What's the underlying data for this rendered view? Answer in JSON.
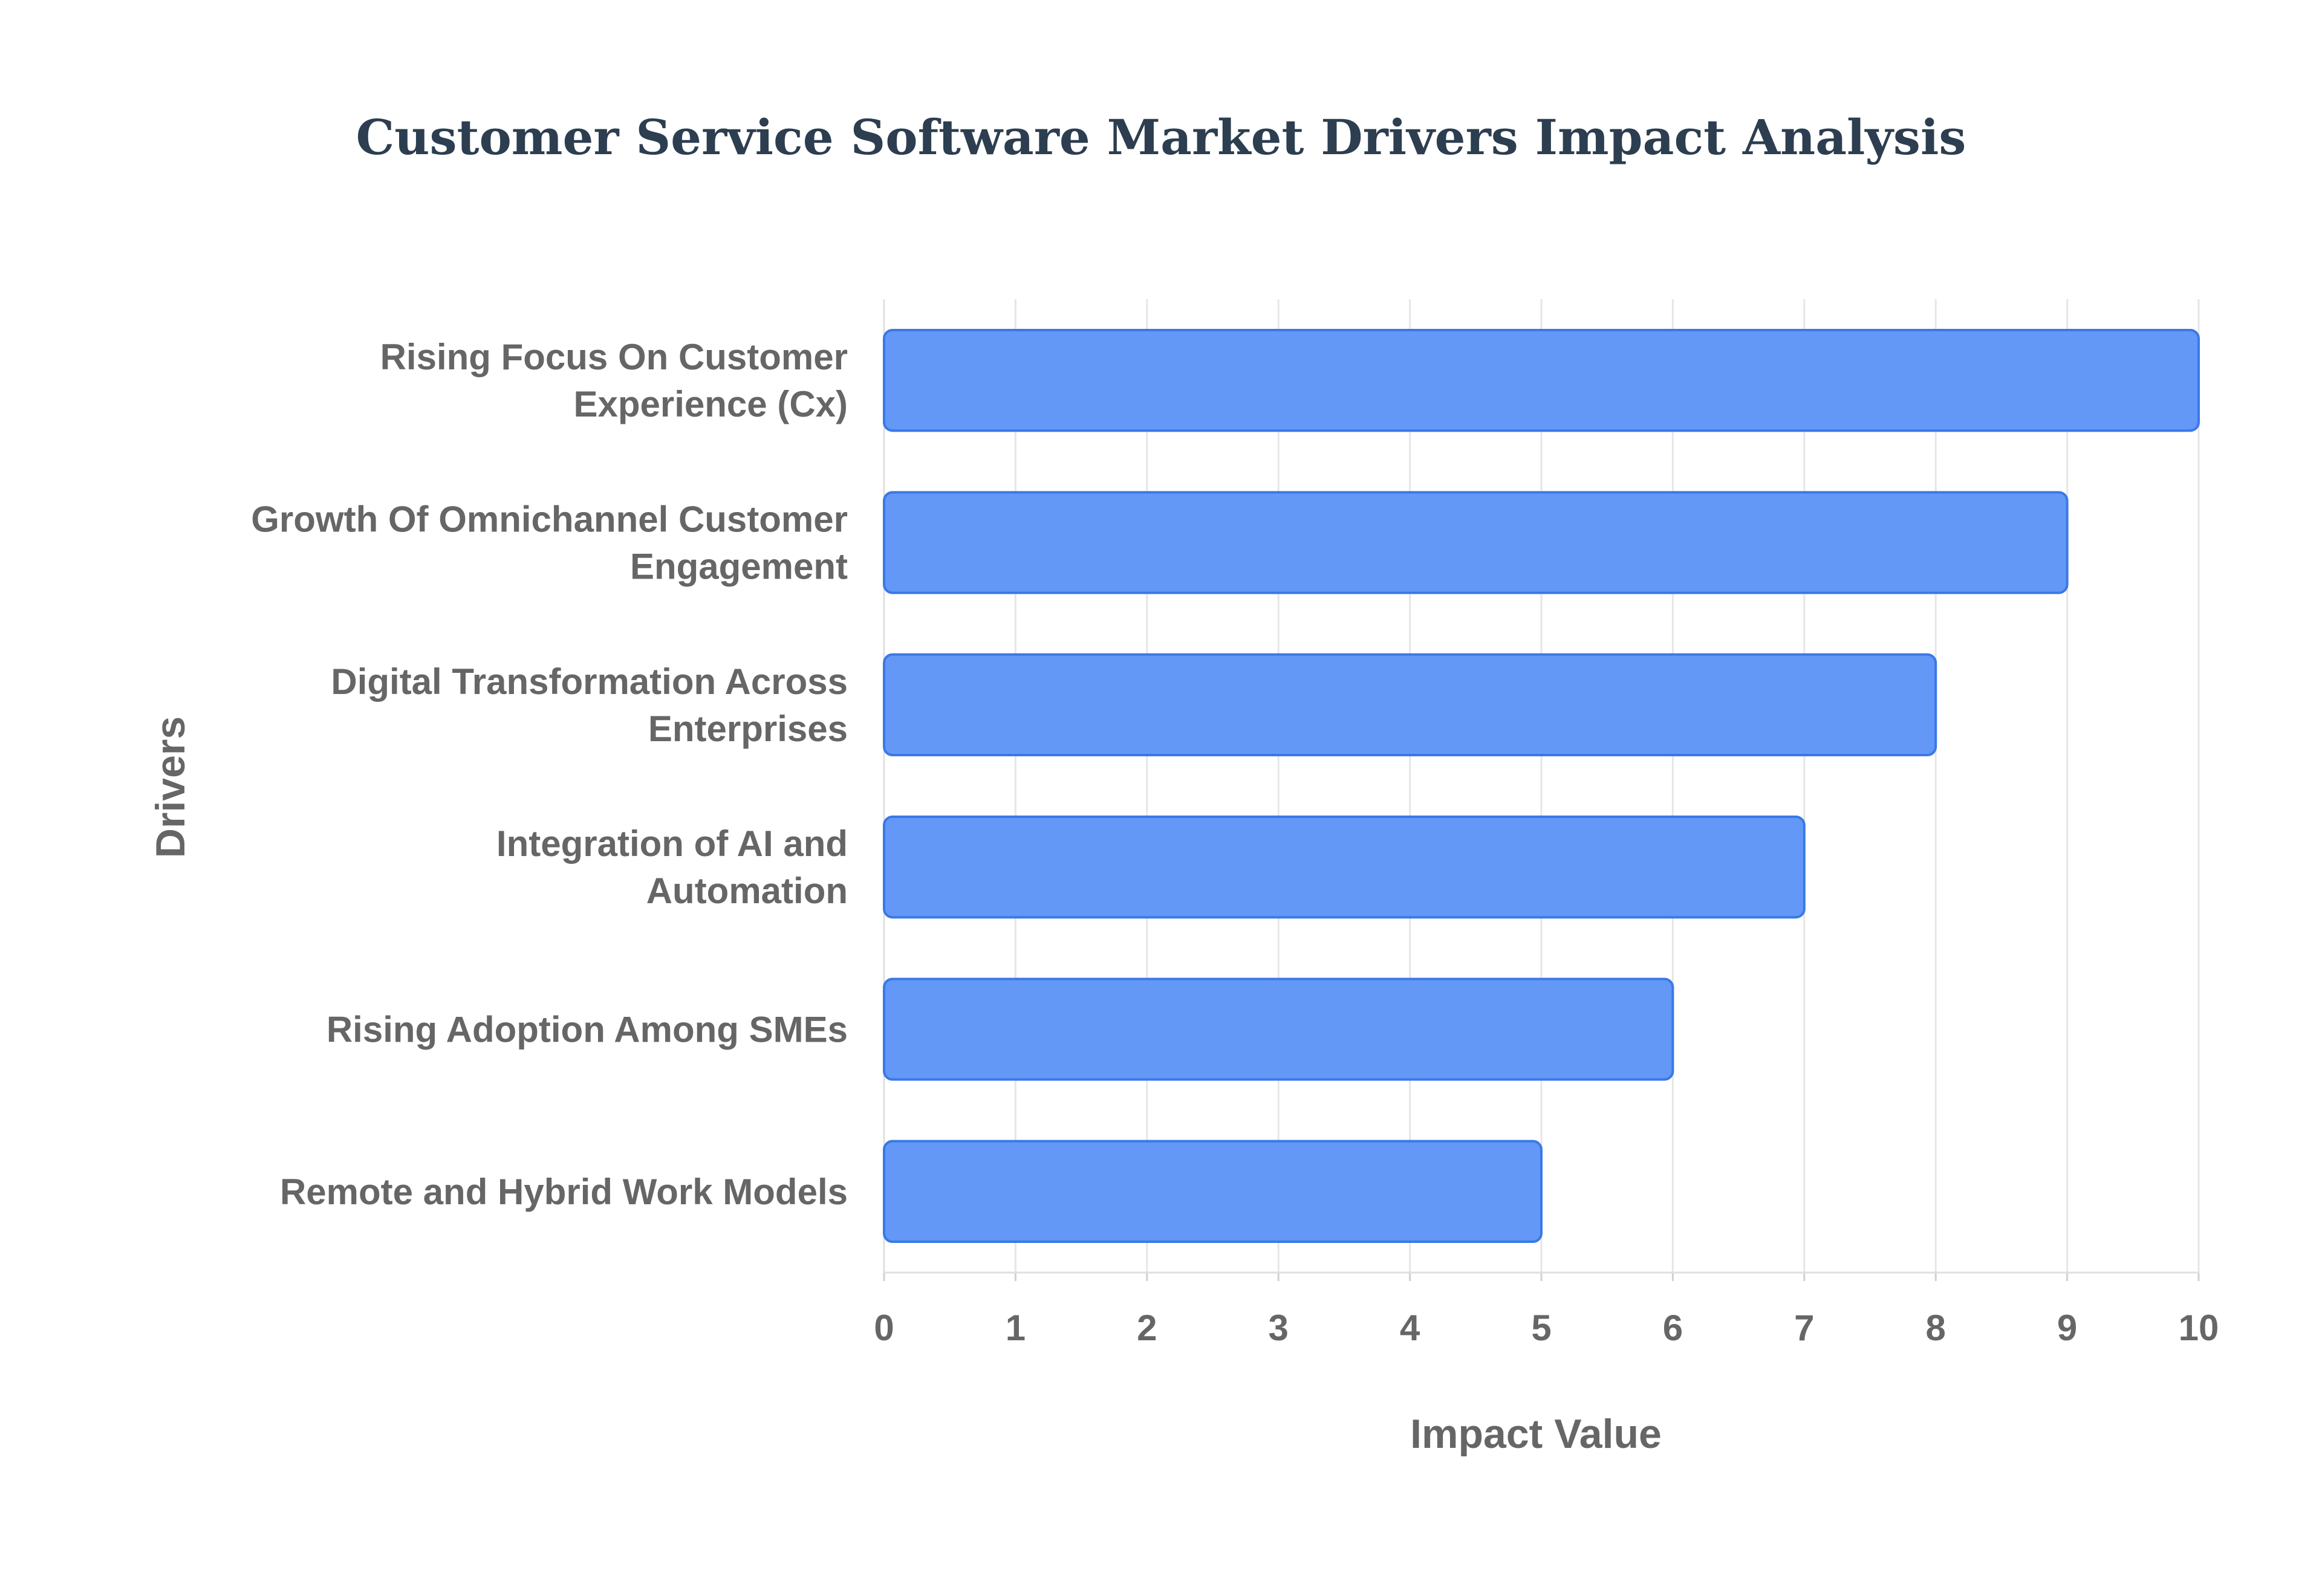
{
  "chart_data": {
    "type": "bar",
    "orientation": "horizontal",
    "title": "Customer Service Software Market Drivers Impact Analysis",
    "xlabel": "Impact Value",
    "ylabel": "Drivers",
    "categories": [
      [
        "Rising Focus On Customer",
        "Experience (Cx)"
      ],
      [
        "Growth Of Omnichannel Customer",
        "Engagement"
      ],
      [
        "Digital Transformation Across",
        "Enterprises"
      ],
      [
        "Integration of AI and",
        "Automation"
      ],
      [
        "Rising Adoption Among SMEs"
      ],
      [
        "Remote and Hybrid Work Models"
      ]
    ],
    "values": [
      10,
      9,
      8,
      7,
      6,
      5
    ],
    "xlim": [
      0,
      10
    ],
    "xticks": [
      "0",
      "1",
      "2",
      "3",
      "4",
      "5",
      "6",
      "7",
      "8",
      "9",
      "10"
    ],
    "grid": true,
    "legend": "none",
    "colors": {
      "bar_fill": "#6398f7",
      "bar_stroke": "#3b78e7"
    }
  }
}
